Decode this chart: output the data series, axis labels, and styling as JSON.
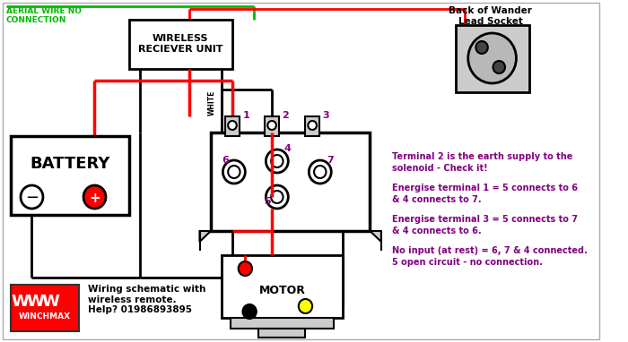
{
  "bg_color": "#ffffff",
  "aerial_text": "AERIAL WIRE NO\nCONNECTION",
  "aerial_color": "#00bb00",
  "wireless_text": "WIRELESS\nRECIEVER UNIT",
  "battery_text": "BATTERY",
  "motor_text": "MOTOR",
  "wander_text": "Back of Wander\nLead Socket",
  "white_text": "WHITE",
  "info_texts": [
    [
      "Terminal 2 is the earth supply to the",
      170
    ],
    [
      "solenoid - Check it!",
      183
    ],
    [
      "Energise terminal 1 = 5 connects to 6",
      205
    ],
    [
      "& 4 connects to 7.",
      218
    ],
    [
      "Energise terminal 3 = 5 connects to 7",
      240
    ],
    [
      "& 4 connects to 6.",
      253
    ],
    [
      "No input (at rest) = 6, 7 & 4 connected.",
      275
    ],
    [
      "5 open circuit - no connection.",
      288
    ]
  ],
  "info_color": "#800080",
  "winchmax_text": "Wiring schematic with\nwireless remote.\nHelp? 01986893895",
  "red": "#ff0000",
  "black": "#000000",
  "yellow": "#ffff00",
  "white_color": "#ffffff",
  "light_gray": "#cccccc",
  "dark_gray": "#888888"
}
